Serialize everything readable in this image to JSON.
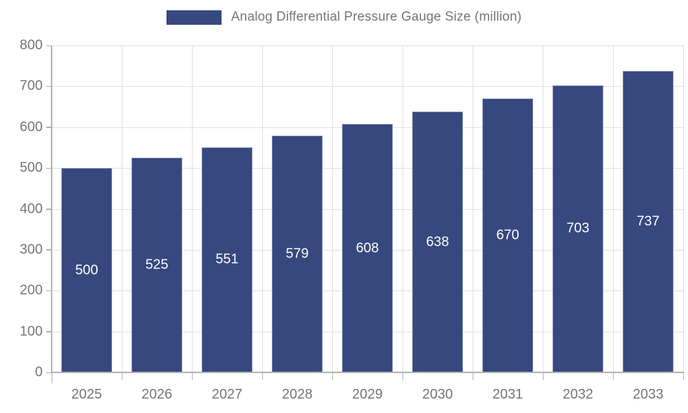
{
  "legend": {
    "label": "Analog Differential Pressure Gauge Size (million)"
  },
  "chart_data": {
    "type": "bar",
    "title": "Analog Differential Pressure Gauge Size (million)",
    "categories": [
      "2025",
      "2026",
      "2027",
      "2028",
      "2029",
      "2030",
      "2031",
      "2032",
      "2033"
    ],
    "values": [
      500,
      525,
      551,
      579,
      608,
      638,
      670,
      703,
      737
    ],
    "series": [
      {
        "name": "Analog Differential Pressure Gauge Size (million)",
        "values": [
          500,
          525,
          551,
          579,
          608,
          638,
          670,
          703,
          737
        ]
      }
    ],
    "xlabel": "",
    "ylabel": "",
    "ylim": [
      0,
      800
    ],
    "ytick_step": 100,
    "ytick_labels": [
      "0",
      "100",
      "200",
      "300",
      "400",
      "500",
      "600",
      "700",
      "800"
    ],
    "grid": true,
    "legend_position": "top-center",
    "value_labels": "inside-center-white",
    "colors": {
      "bar": "#36487e",
      "bar_border": "#9aa1c2",
      "grid": "#e0e0e0",
      "axis": "#b0b0b0",
      "tick_text": "#757575",
      "value_label": "#ffffff",
      "background": "#ffffff"
    }
  }
}
